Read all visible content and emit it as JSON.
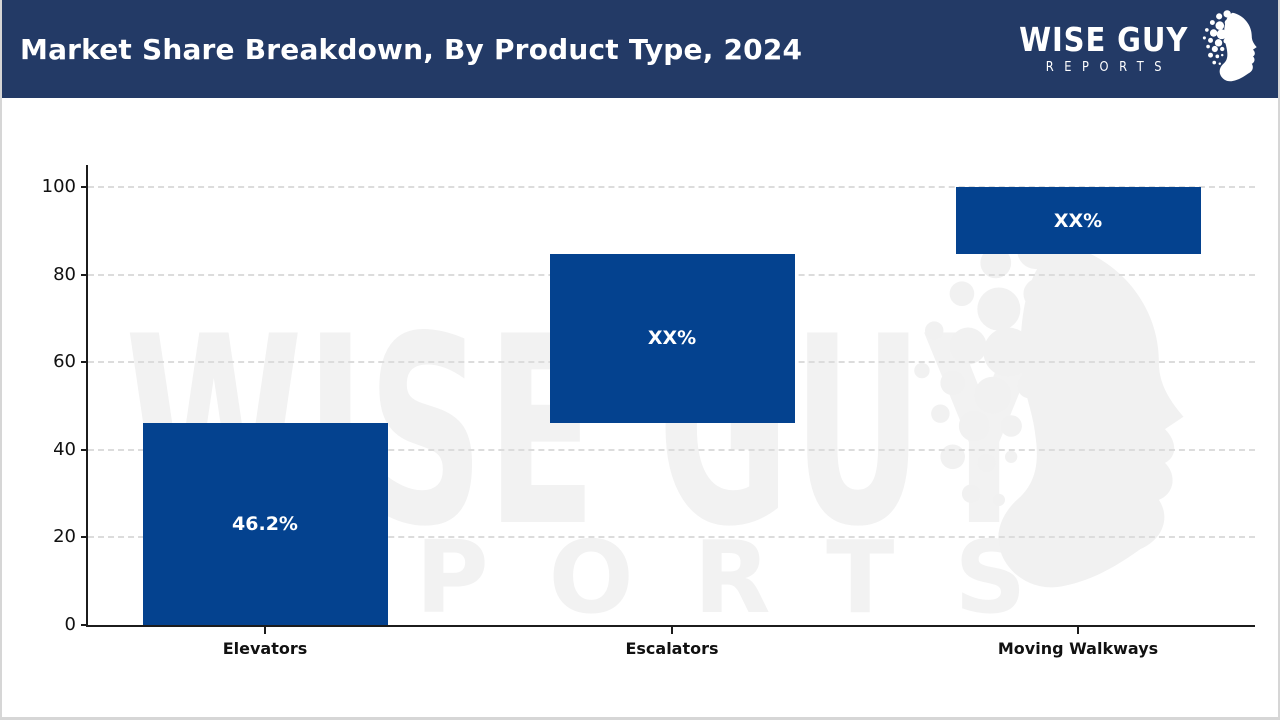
{
  "header": {
    "title": "Market Share Breakdown, By Product Type, 2024",
    "logo": {
      "line1": "WISE GUY",
      "line2": "REPORTS"
    }
  },
  "watermark": {
    "line1": "WISE GUY",
    "line2": "REPORTS"
  },
  "colors": {
    "header_bg": "#233a66",
    "bar": "#04428f",
    "bar_label": "#ffffff",
    "gridline": "#dcdcdc",
    "axis": "#1c1c1c",
    "tick_label": "#111111",
    "watermark": "#f2f2f2",
    "frame_border": "#d6d6d6"
  },
  "chart_data": {
    "type": "bar",
    "subtype": "waterfall",
    "title": "Market Share Breakdown, By Product Type, 2024",
    "categories": [
      "Elevators",
      "Escalators",
      "Moving Walkways"
    ],
    "segments": [
      {
        "category": "Elevators",
        "start": 0,
        "end": 46.2,
        "label": "46.2%"
      },
      {
        "category": "Escalators",
        "start": 46.2,
        "end": 84.7,
        "label": "XX%"
      },
      {
        "category": "Moving Walkways",
        "start": 84.7,
        "end": 100,
        "label": "XX%"
      }
    ],
    "y_ticks": [
      0,
      20,
      40,
      60,
      80,
      100
    ],
    "ylim": [
      0,
      105
    ],
    "xlabel": "",
    "ylabel": "",
    "grid": "horizontal-dashed",
    "legend": false
  }
}
